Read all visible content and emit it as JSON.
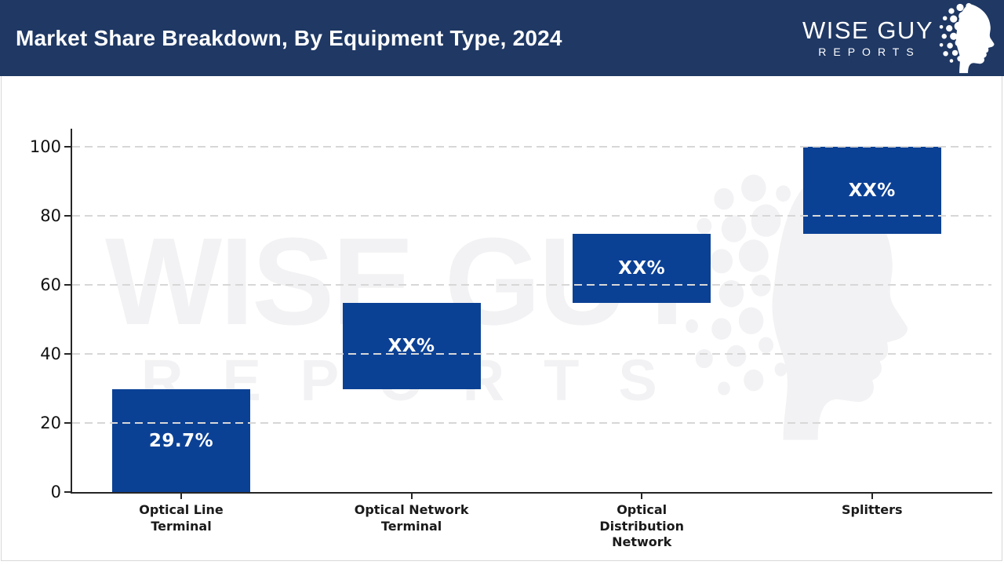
{
  "header": {
    "title": "Market Share Breakdown, By Equipment Type, 2024",
    "logo": {
      "line1": "WISE GUY",
      "line2": "REPORTS"
    },
    "bg_color": "#1f3864"
  },
  "watermark": {
    "line1": "WISE GUY",
    "line2": "REPORTS"
  },
  "chart_data": {
    "type": "bar",
    "subtype": "waterfall-stacked-segments",
    "title": "Market Share Breakdown, By Equipment Type, 2024",
    "categories": [
      "Optical Line\nTerminal",
      "Optical Network\nTerminal",
      "Optical\nDistribution\nNetwork",
      "Splitters"
    ],
    "bars": [
      {
        "category": "Optical Line Terminal",
        "start": 0,
        "end": 29.7,
        "label": "29.7%"
      },
      {
        "category": "Optical Network Terminal",
        "start": 29.7,
        "end": 54.7,
        "label": "XX%"
      },
      {
        "category": "Optical Distribution Network",
        "start": 54.7,
        "end": 74.7,
        "label": "XX%"
      },
      {
        "category": "Splitters",
        "start": 74.7,
        "end": 100,
        "label": "XX%"
      }
    ],
    "xlabel": "",
    "ylabel": "",
    "ylim": [
      0,
      100
    ],
    "yticks": [
      0,
      20,
      40,
      60,
      80,
      100
    ],
    "grid": "horizontal-dashed",
    "legend": "none",
    "bar_color": "#0b4195",
    "axis_color": "#262626",
    "grid_color": "#d7d7d7",
    "label_color": "#ffffff"
  }
}
